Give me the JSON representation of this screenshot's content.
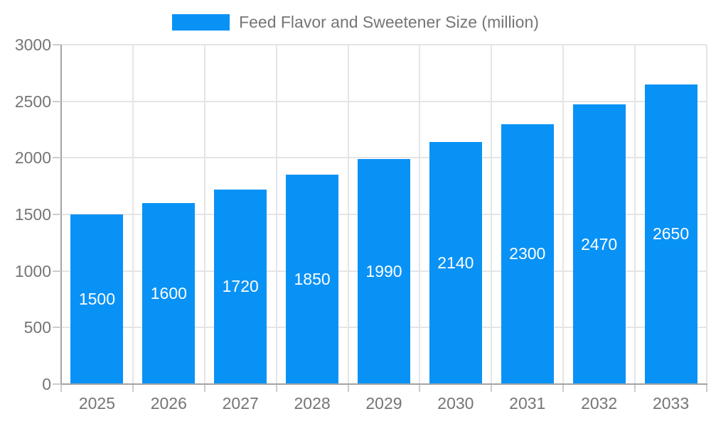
{
  "chart_data": {
    "type": "bar",
    "title": "Feed Flavor and Sweetener Size (million)",
    "legend": {
      "label": "Feed Flavor and Sweetener Size (million)",
      "position": "top"
    },
    "categories": [
      "2025",
      "2026",
      "2027",
      "2028",
      "2029",
      "2030",
      "2031",
      "2032",
      "2033"
    ],
    "values": [
      1500,
      1600,
      1720,
      1850,
      1990,
      2140,
      2300,
      2470,
      2650
    ],
    "value_labels_visible": true,
    "xlabel": "",
    "ylabel": "",
    "ylim": [
      0,
      3000
    ],
    "y_ticks": [
      0,
      500,
      1000,
      1500,
      2000,
      2500,
      3000
    ],
    "grid": true,
    "colors": {
      "bar": "#0992f6",
      "value_label": "#ffffff",
      "axis_text": "#757575",
      "axis_line": "#a3a3a3",
      "tick_line": "#cccccc",
      "gridline": "#e5e5e5",
      "background": "#ffffff"
    }
  }
}
